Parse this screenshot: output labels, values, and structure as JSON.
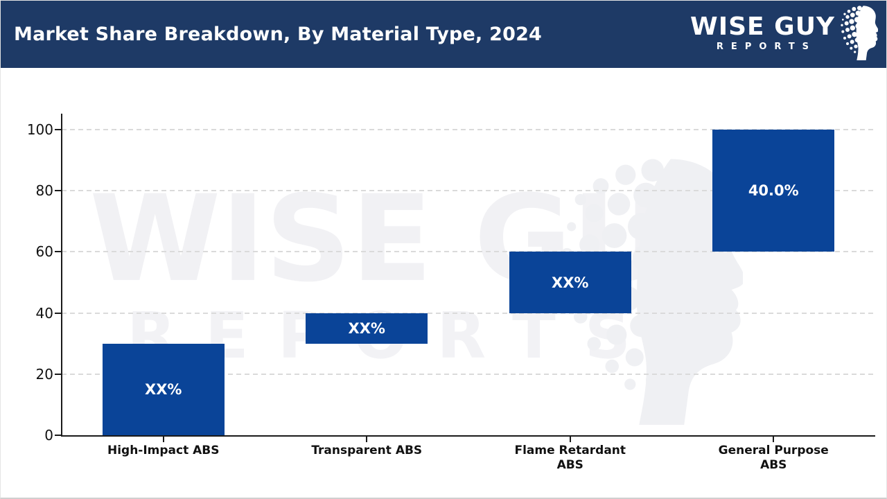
{
  "header": {
    "title": "Market Share Breakdown, By Material Type, 2024",
    "logo": {
      "line1": "WISE GUY",
      "line2": "REPORTS"
    }
  },
  "watermark": {
    "line1": "WISE GUY",
    "line2": "REPORTS"
  },
  "icons": {
    "logo_face": "dotted-face-profile-icon",
    "watermark_face": "dotted-face-profile-icon"
  },
  "colors": {
    "header_background": "#1e3a66",
    "bar": "#0a4498",
    "bar_label_text": "#ffffff",
    "gridline": "#dadada",
    "axis": "#1a1a1a",
    "watermark": "#f1f1f4"
  },
  "chart_data": {
    "type": "bar",
    "subtype": "waterfall",
    "title": "Market Share Breakdown, By Material Type, 2024",
    "categories": [
      "High-Impact ABS",
      "Transparent ABS",
      "Flame Retardant ABS",
      "General Purpose ABS"
    ],
    "category_label_lines": [
      [
        "High-Impact ABS"
      ],
      [
        "Transparent ABS"
      ],
      [
        "Flame Retardant",
        "ABS"
      ],
      [
        "General Purpose",
        "ABS"
      ]
    ],
    "segments": [
      {
        "category": "High-Impact ABS",
        "start": 0,
        "end": 30,
        "value": 30,
        "label": "XX%"
      },
      {
        "category": "Transparent ABS",
        "start": 30,
        "end": 40,
        "value": 10,
        "label": "XX%"
      },
      {
        "category": "Flame Retardant ABS",
        "start": 40,
        "end": 60,
        "value": 20,
        "label": "XX%"
      },
      {
        "category": "General Purpose ABS",
        "start": 60,
        "end": 100,
        "value": 40,
        "label": "40.0%"
      }
    ],
    "xlabel": "",
    "ylabel": "",
    "yticks": [
      0,
      20,
      40,
      60,
      80,
      100
    ],
    "ylim": [
      0,
      105
    ],
    "grid": "horizontal-dashed",
    "legend": "none"
  }
}
